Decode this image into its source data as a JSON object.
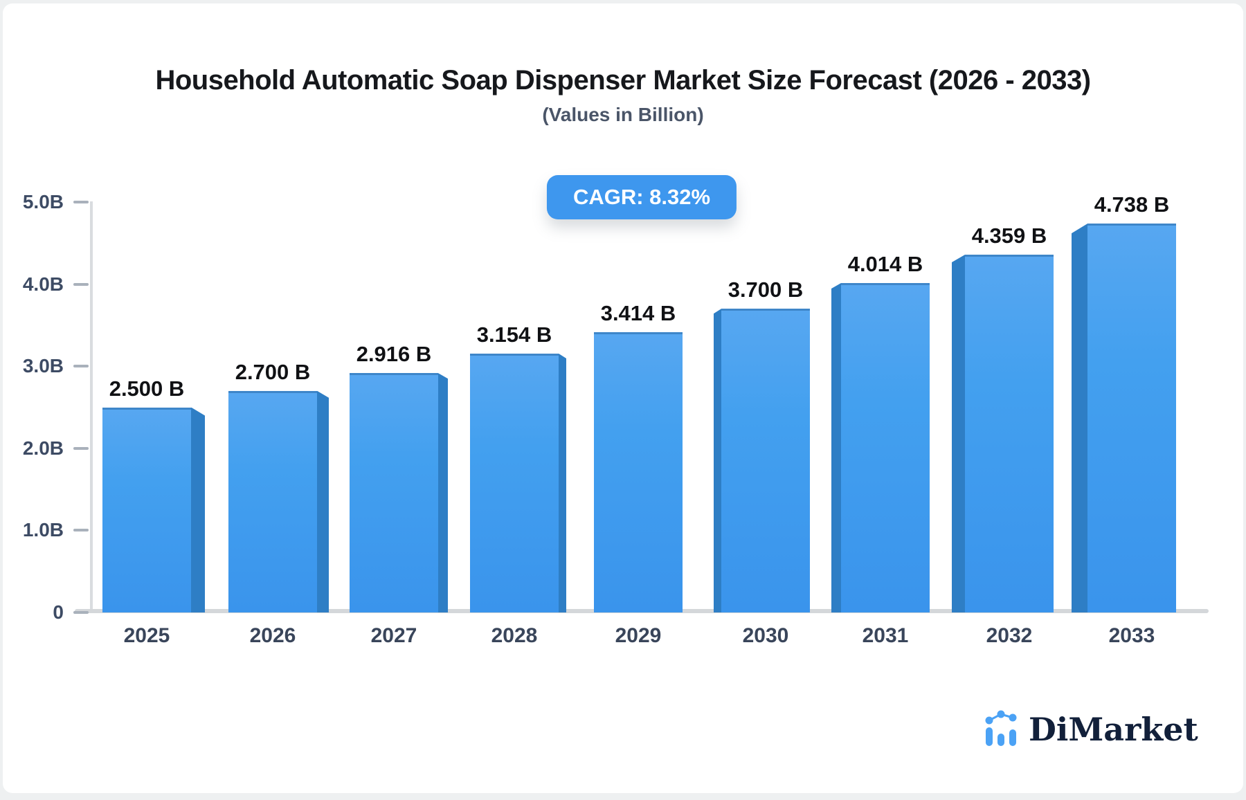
{
  "title": "Household Automatic Soap Dispenser Market Size Forecast (2026 - 2033)",
  "subtitle": "(Values in Billion)",
  "cagr_badge": "CAGR: 8.32%",
  "logo": {
    "text": "DiMarket",
    "icon": "bar-chart-trend-icon"
  },
  "colors": {
    "accent_blue": "#3e97ee",
    "bar_face_top": "#57a7f1",
    "bar_face_bottom": "#3a94ec",
    "bar_side": "#2e7ec5",
    "axis_gray": "#d4d7da",
    "logo_navy": "#12203a"
  },
  "chart_data": {
    "type": "bar",
    "title": "Household Automatic Soap Dispenser Market Size Forecast (2026 - 2033)",
    "subtitle": "(Values in Billion)",
    "cagr": "8.32%",
    "categories": [
      "2025",
      "2026",
      "2027",
      "2028",
      "2029",
      "2030",
      "2031",
      "2032",
      "2033"
    ],
    "values": [
      2.5,
      2.7,
      2.916,
      3.154,
      3.414,
      3.7,
      4.014,
      4.359,
      4.738
    ],
    "value_labels": [
      "2.500 B",
      "2.700 B",
      "2.916 B",
      "3.154 B",
      "3.414 B",
      "3.700 B",
      "4.014 B",
      "4.359 B",
      "4.738 B"
    ],
    "unit": "Billion",
    "xlabel": "",
    "ylabel": "",
    "ylim": [
      0,
      5.0
    ],
    "yticks": [
      "5.0B",
      "4.0B",
      "3.0B",
      "2.0B",
      "1.0B",
      "0"
    ],
    "ytick_values": [
      5.0,
      4.0,
      3.0,
      2.0,
      1.0,
      0
    ],
    "grid": false,
    "legend": "none",
    "bar_style": "3d-perspective"
  }
}
